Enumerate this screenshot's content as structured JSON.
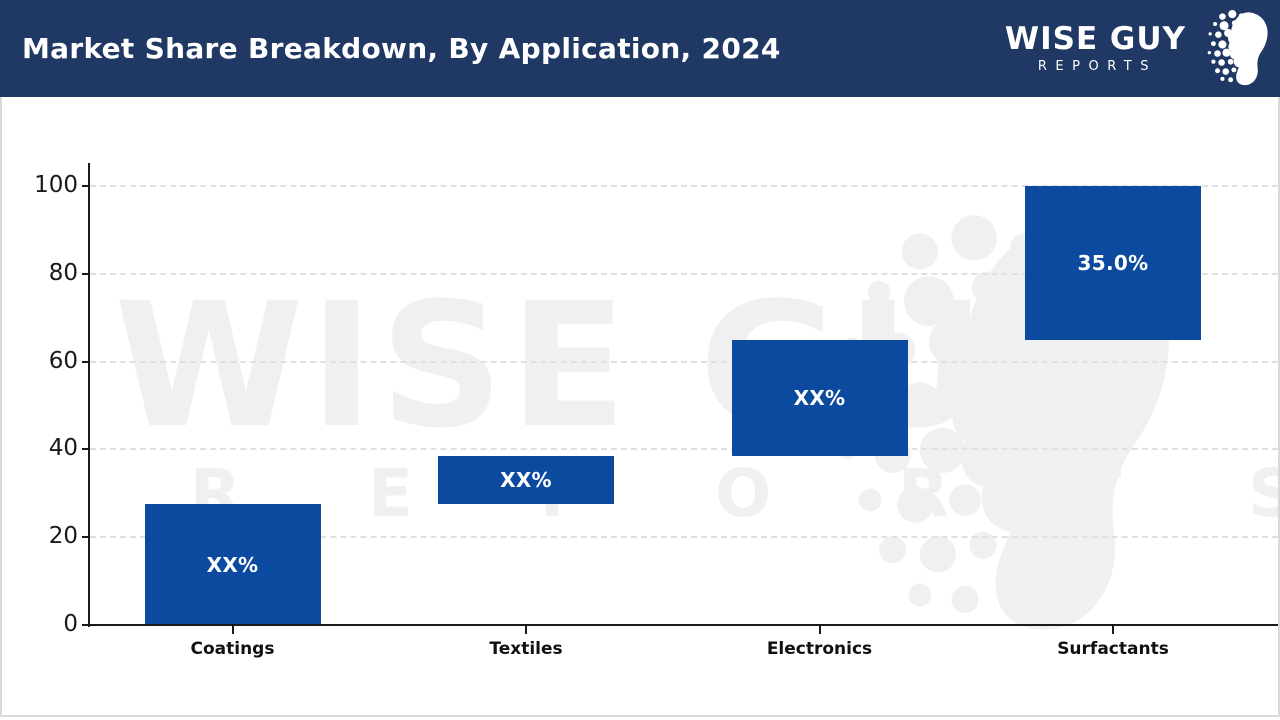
{
  "header": {
    "title": "Market Share Breakdown, By Application, 2024",
    "logo": {
      "line1": "WISE GUY",
      "line2": "REPORTS"
    }
  },
  "watermark": {
    "line1": "WISE GUY",
    "line2": "R E P O R T S"
  },
  "chart_data": {
    "type": "bar",
    "subtype": "waterfall",
    "title": "Market Share Breakdown, By Application, 2024",
    "categories": [
      "Coatings",
      "Textiles",
      "Electronics",
      "Surfactants"
    ],
    "bars": [
      {
        "category": "Coatings",
        "start": 0,
        "end": 27.5,
        "value": 27.5,
        "label": "XX%"
      },
      {
        "category": "Textiles",
        "start": 27.5,
        "end": 38.5,
        "value": 11,
        "label": "XX%"
      },
      {
        "category": "Electronics",
        "start": 38.5,
        "end": 65,
        "value": 26.5,
        "label": "XX%"
      },
      {
        "category": "Surfactants",
        "start": 65,
        "end": 100,
        "value": 35,
        "label": "35.0%"
      }
    ],
    "yticks": [
      0,
      20,
      40,
      60,
      80,
      100
    ],
    "ylim": [
      0,
      100
    ],
    "xlabel": "",
    "ylabel": "",
    "grid": "horizontal-dashed",
    "legend": "none"
  },
  "colors": {
    "header_bg": "#1f3864",
    "bar": "#0b4a9e",
    "grid": "#e0e0e0",
    "axis": "#1a1a1a",
    "tick_text": "#1a1a1a",
    "watermark": "#f0f0f2",
    "panel_border": "#d9d9d9"
  }
}
